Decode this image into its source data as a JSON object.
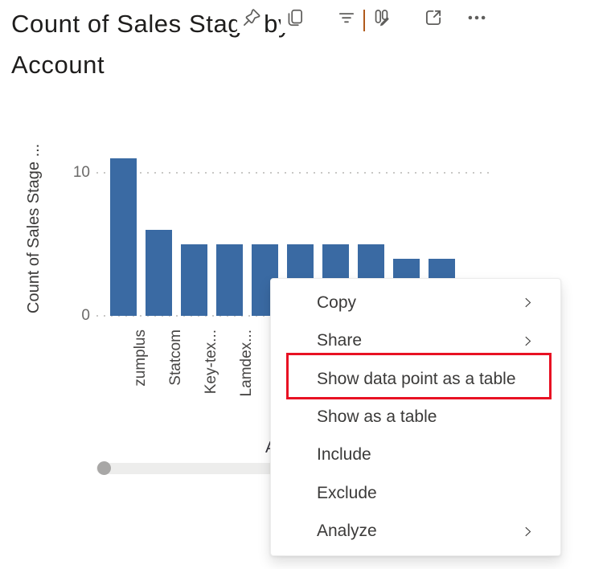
{
  "header": {
    "title": "Count of Sales Stage by Account",
    "icons": [
      {
        "name": "pin-icon"
      },
      {
        "name": "copy-icon"
      },
      {
        "name": "filter-icon"
      },
      {
        "name": "personalize-visual-icon"
      },
      {
        "name": "focus-mode-icon"
      },
      {
        "name": "more-options-icon"
      }
    ]
  },
  "chart_data": {
    "type": "bar",
    "title": "Count of Sales Stage by Account",
    "categories": [
      "zumplus",
      "Statcom",
      "Key-tex...",
      "Lamdex...",
      "",
      "",
      "",
      "",
      "",
      ""
    ],
    "values": [
      11,
      6,
      5,
      5,
      5,
      5,
      5,
      5,
      4,
      4
    ],
    "visible_category_labels": 4,
    "xlabel": "Account",
    "ylabel": "Count of Sales Stage ...",
    "yticks": [
      0,
      10
    ],
    "ylim": [
      0,
      11.2
    ],
    "grid": "dotted horizontal lines at y=0 and y=10",
    "legend": "none",
    "bar_color": "#3A6AA3"
  },
  "slider": {
    "handle_position": "left"
  },
  "menu": {
    "items": [
      {
        "label": "Copy",
        "has_submenu": true,
        "highlighted": false
      },
      {
        "label": "Share",
        "has_submenu": true,
        "highlighted": false
      },
      {
        "label": "Show data point as a table",
        "has_submenu": false,
        "highlighted": true
      },
      {
        "label": "Show as a table",
        "has_submenu": false,
        "highlighted": false
      },
      {
        "label": "Include",
        "has_submenu": false,
        "highlighted": false
      },
      {
        "label": "Exclude",
        "has_submenu": false,
        "highlighted": false
      },
      {
        "label": "Analyze",
        "has_submenu": true,
        "highlighted": false
      }
    ]
  },
  "colors": {
    "bar": "#3A6AA3",
    "annotation_red": "#E81123",
    "header_divider_orange": "#B05A1C",
    "icon_gray": "#5F5E5C",
    "menu_text": "#3B3A39",
    "axis_text": "#6B6A69"
  }
}
